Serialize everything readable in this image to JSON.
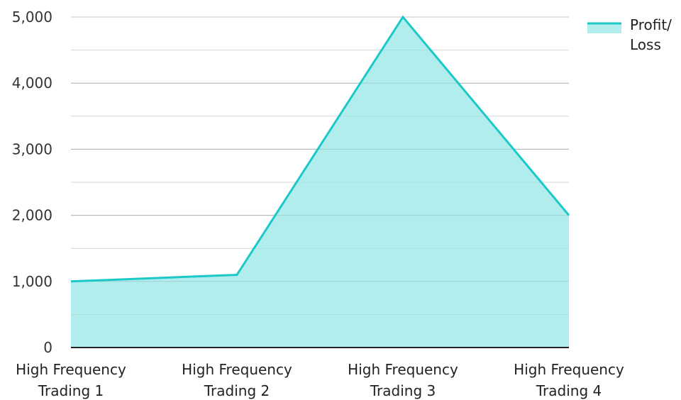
{
  "chart_data": {
    "type": "area",
    "categories": [
      [
        "High Frequency",
        "Trading 1"
      ],
      [
        "High Frequency",
        "Trading 2"
      ],
      [
        "High Frequency",
        "Trading 3"
      ],
      [
        "High Frequency",
        "Trading 4"
      ]
    ],
    "series": [
      {
        "name": [
          "Profit/",
          "Loss"
        ],
        "values": [
          1000,
          1100,
          5000,
          2000
        ],
        "line_color": "#1cc8c8",
        "fill_color": "#b2eded"
      }
    ],
    "ylim": [
      0,
      5000
    ],
    "yticks": [
      0,
      1000,
      2000,
      3000,
      4000,
      5000
    ],
    "ytick_labels": [
      "0",
      "1,000",
      "2,000",
      "3,000",
      "4,000",
      "5,000"
    ],
    "grid": true,
    "legend_position": "top-right",
    "title": "",
    "xlabel": "",
    "ylabel": ""
  }
}
